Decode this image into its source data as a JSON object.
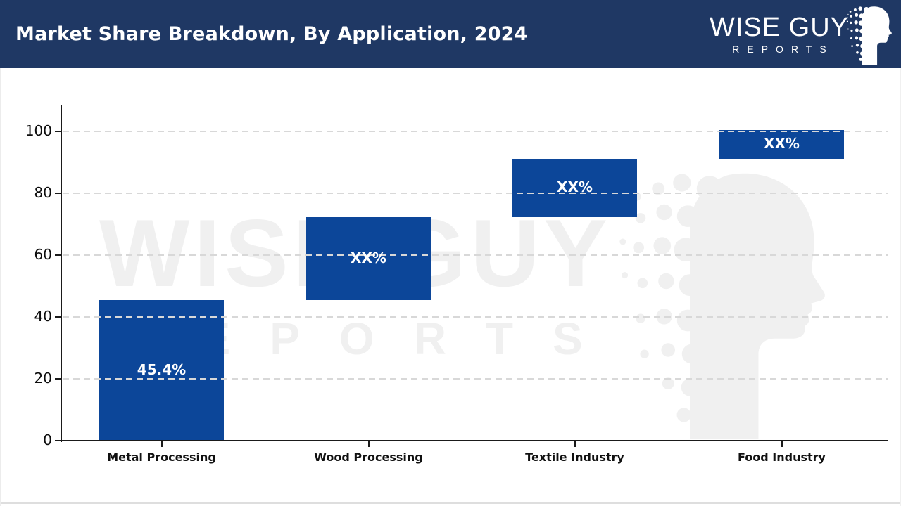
{
  "header": {
    "title": "Market Share Breakdown, By Application, 2024",
    "bg_color": "#1f3864",
    "brand": {
      "name_top": "WISE GUY",
      "name_bottom": "REPORTS"
    }
  },
  "watermark": {
    "text_top": "WISE GUY",
    "text_bottom": "REPORTS",
    "color": "#f0f0f0"
  },
  "chart_data": {
    "type": "bar",
    "subtype": "floating-waterfall",
    "title": "Market Share Breakdown, By Application, 2024",
    "categories": [
      "Metal Processing",
      "Wood Processing",
      "Textile Industry",
      "Food Industry"
    ],
    "segments": [
      {
        "category": "Metal Processing",
        "start": 0,
        "end": 45.4,
        "label": "45.4%"
      },
      {
        "category": "Wood Processing",
        "start": 45.4,
        "end": 72.3,
        "label": "XX%"
      },
      {
        "category": "Textile Industry",
        "start": 72.3,
        "end": 91.2,
        "label": "XX%"
      },
      {
        "category": "Food Industry",
        "start": 91.2,
        "end": 100.5,
        "label": "XX%"
      }
    ],
    "xlabel": "",
    "ylabel": "",
    "ylim": [
      0,
      105
    ],
    "yticks": [
      0,
      20,
      40,
      60,
      80,
      100
    ],
    "grid": "horizontal-dashed",
    "legend": "none",
    "bar_color": "#0c4699",
    "bar_label_color": "#ffffff",
    "grid_color": "#d8d8d8",
    "axis_color": "#1a1a1a",
    "tick_label_color": "#0d0d0d"
  }
}
